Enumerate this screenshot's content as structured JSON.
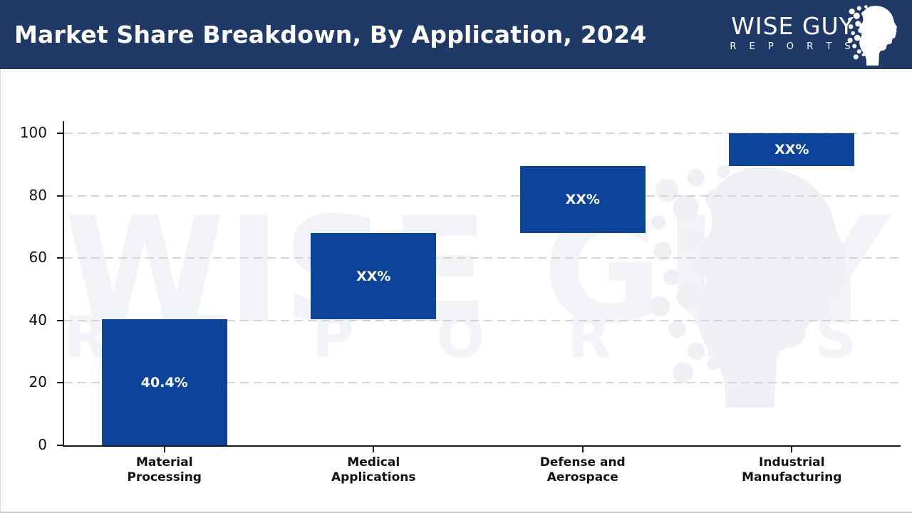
{
  "header": {
    "title": "Market Share Breakdown, By Application, 2024",
    "brand": {
      "name": "WISE GUY",
      "tagline": "R E P O R T S"
    }
  },
  "watermark": {
    "line1": "WISE GUY",
    "line2": "R E P O R T S"
  },
  "chart_data": {
    "type": "bar",
    "subtype": "waterfall",
    "title": "Market Share Breakdown, By Application, 2024",
    "xlabel": "",
    "ylabel": "",
    "ylim": [
      0,
      100
    ],
    "yticks": [
      0,
      20,
      40,
      60,
      80,
      100
    ],
    "grid": "horizontal-dashed",
    "legend": "none",
    "categories": [
      "Material Processing",
      "Medical Applications",
      "Defense and Aerospace",
      "Industrial Manufacturing"
    ],
    "category_lines": [
      [
        "Material",
        "Processing"
      ],
      [
        "Medical",
        "Applications"
      ],
      [
        "Defense and",
        "Aerospace"
      ],
      [
        "Industrial",
        "Manufacturing"
      ]
    ],
    "segments": [
      {
        "category": "Material Processing",
        "start": 0,
        "end": 40.4,
        "label": "40.4%"
      },
      {
        "category": "Medical Applications",
        "start": 40.4,
        "end": 68,
        "label": "XX%"
      },
      {
        "category": "Defense and Aerospace",
        "start": 68,
        "end": 89.5,
        "label": "XX%"
      },
      {
        "category": "Industrial Manufacturing",
        "start": 89.5,
        "end": 100,
        "label": "XX%"
      }
    ],
    "colors": {
      "bar": "#0b4499",
      "bar_label": "#ffffff",
      "header_bg": "#203a68",
      "axis": "#1a1a1a",
      "grid": "#d6d6d6",
      "watermark": "#f2f3f6"
    }
  }
}
